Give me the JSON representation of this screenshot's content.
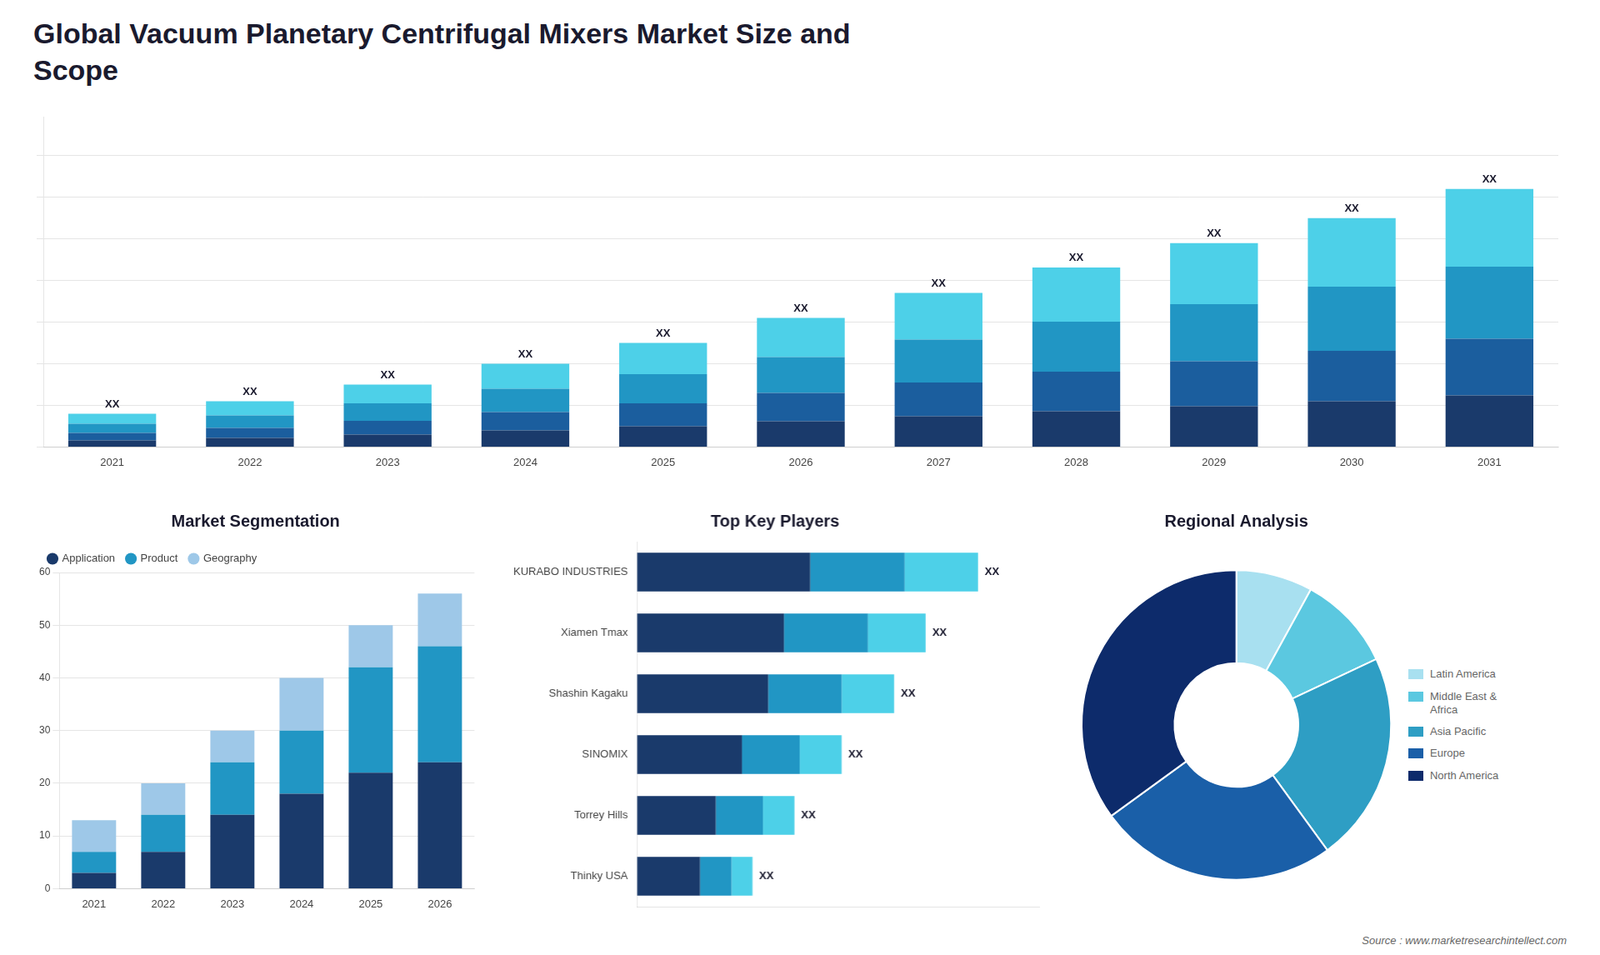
{
  "title": "Global Vacuum Planetary Centrifugal Mixers Market Size and\nScope",
  "annotations": [
    "Source : www.marketresearchintellect.com"
  ],
  "chart_data": [
    {
      "type": "bar",
      "stacked": true,
      "categories": [
        2021,
        2022,
        2023,
        2024,
        2025,
        2026,
        2027,
        2028,
        2029,
        2030,
        2031
      ],
      "series": [
        {
          "color": "#1a3a6b",
          "values": [
            1.6,
            2.2,
            3.0,
            4.0,
            5.0,
            6.2,
            7.4,
            8.6,
            9.8,
            11.0,
            12.4
          ]
        },
        {
          "color": "#1b5e9e",
          "values": [
            1.8,
            2.4,
            3.3,
            4.4,
            5.5,
            6.8,
            8.1,
            9.5,
            10.8,
            12.1,
            13.6
          ]
        },
        {
          "color": "#2196c4",
          "values": [
            2.2,
            3.0,
            4.2,
            5.6,
            7.0,
            8.6,
            10.3,
            12.0,
            13.7,
            15.4,
            17.3
          ]
        },
        {
          "color": "#4dd0e8",
          "values": [
            2.4,
            3.4,
            4.5,
            6.0,
            7.5,
            9.4,
            11.2,
            13.0,
            14.7,
            16.5,
            18.7
          ]
        }
      ],
      "ylim": [
        0,
        79.36
      ],
      "yticks": [
        0,
        10,
        20,
        30,
        40,
        50,
        60,
        70
      ],
      "grid": true,
      "tick_labels": "x",
      "annotations": [
        "XX",
        "XX",
        "XX",
        "XX",
        "XX",
        "XX",
        "XX",
        "XX",
        "XX",
        "XX",
        "XX"
      ]
    },
    {
      "type": "bar",
      "title": "Market Segmentation",
      "stacked": true,
      "categories": [
        2021,
        2022,
        2023,
        2024,
        2025,
        2026
      ],
      "series": [
        {
          "name": "Application",
          "color": "#1a3a6b",
          "values": [
            3,
            7,
            14,
            18,
            22,
            24
          ]
        },
        {
          "name": "Product",
          "color": "#2196c4",
          "values": [
            4,
            7,
            10,
            12,
            20,
            22
          ]
        },
        {
          "name": "Geography",
          "color": "#9ec8e8",
          "values": [
            6,
            6,
            6,
            10,
            8,
            10
          ]
        }
      ],
      "ylim": [
        0,
        60
      ],
      "yticks": [
        0,
        10,
        20,
        30,
        40,
        50,
        60
      ],
      "grid": true,
      "legend": "upper left"
    },
    {
      "type": "bar",
      "title": "Top Key Players",
      "orientation": "horizontal",
      "stacked": true,
      "categories": [
        "KURABO INDUSTRIES",
        "Xiamen Tmax",
        "Shashin Kagaku",
        "SINOMIX",
        "Torrey Hills",
        "Thinky USA"
      ],
      "series": [
        {
          "color": "#1a3a6b",
          "values": [
            33,
            28,
            25,
            20,
            15,
            12
          ]
        },
        {
          "color": "#2196c4",
          "values": [
            18,
            16,
            14,
            11,
            9,
            6
          ]
        },
        {
          "color": "#4dd0e8",
          "values": [
            14,
            11,
            10,
            8,
            6,
            4
          ]
        }
      ],
      "xlim": [
        0,
        76.7
      ],
      "grid": false,
      "tick_labels": "y",
      "annotations": [
        "XX",
        "XX",
        "XX",
        "XX",
        "XX",
        "XX"
      ]
    },
    {
      "type": "doughnut",
      "title": "Regional Analysis",
      "categories": [
        "Latin America",
        "Middle East &\nAfrica",
        "Asia Pacific",
        "Europe",
        "North America"
      ],
      "values": [
        8,
        10,
        22,
        25,
        35
      ],
      "colors": [
        "#a8e0f0",
        "#5bc8e0",
        "#2e9ec4",
        "#1a5fa8",
        "#0d2b6b"
      ],
      "legend": "right"
    }
  ]
}
